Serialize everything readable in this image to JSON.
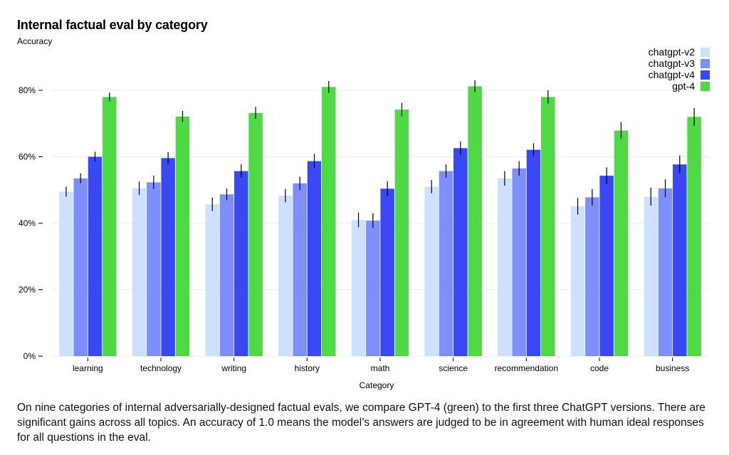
{
  "title": "Internal factual eval by category",
  "caption": "On nine categories of internal adversarially-designed factual evals, we compare GPT-4 (green) to the first three ChatGPT versions. There are significant gains across all topics. An accuracy of 1.0 means the model’s answers are judged to be in agreement with human ideal responses for all questions in the eval.",
  "chart_data": {
    "type": "bar",
    "title": "Internal factual eval by category",
    "xlabel": "Category",
    "ylabel": "Accuracy",
    "ylim": [
      0,
      0.8
    ],
    "yticks": [
      {
        "value": 0,
        "label": "0%"
      },
      {
        "value": 0.2,
        "label": "20%"
      },
      {
        "value": 0.4,
        "label": "40%"
      },
      {
        "value": 0.6,
        "label": "60%"
      },
      {
        "value": 0.8,
        "label": "80%"
      }
    ],
    "grid": true,
    "legend": "top-right",
    "categories": [
      "learning",
      "technology",
      "writing",
      "history",
      "math",
      "science",
      "recommendation",
      "code",
      "business"
    ],
    "series": [
      {
        "name": "chatgpt-v2",
        "color": "#cfe0ff",
        "values": [
          0.495,
          0.505,
          0.457,
          0.483,
          0.41,
          0.51,
          0.535,
          0.451,
          0.48
        ],
        "errors": [
          0.015,
          0.02,
          0.02,
          0.02,
          0.022,
          0.02,
          0.022,
          0.025,
          0.027
        ]
      },
      {
        "name": "chatgpt-v3",
        "color": "#7e8ffb",
        "values": [
          0.535,
          0.523,
          0.487,
          0.52,
          0.408,
          0.557,
          0.565,
          0.478,
          0.505
        ],
        "errors": [
          0.015,
          0.02,
          0.018,
          0.02,
          0.022,
          0.02,
          0.022,
          0.025,
          0.027
        ]
      },
      {
        "name": "chatgpt-v4",
        "color": "#3a47f5",
        "values": [
          0.6,
          0.596,
          0.557,
          0.587,
          0.504,
          0.626,
          0.621,
          0.543,
          0.577
        ],
        "errors": [
          0.015,
          0.018,
          0.02,
          0.022,
          0.022,
          0.02,
          0.02,
          0.025,
          0.027
        ]
      },
      {
        "name": "gpt-4",
        "color": "#4fd945",
        "values": [
          0.78,
          0.721,
          0.732,
          0.81,
          0.742,
          0.812,
          0.78,
          0.679,
          0.72
        ],
        "errors": [
          0.013,
          0.017,
          0.018,
          0.018,
          0.02,
          0.018,
          0.02,
          0.025,
          0.027
        ]
      }
    ]
  }
}
